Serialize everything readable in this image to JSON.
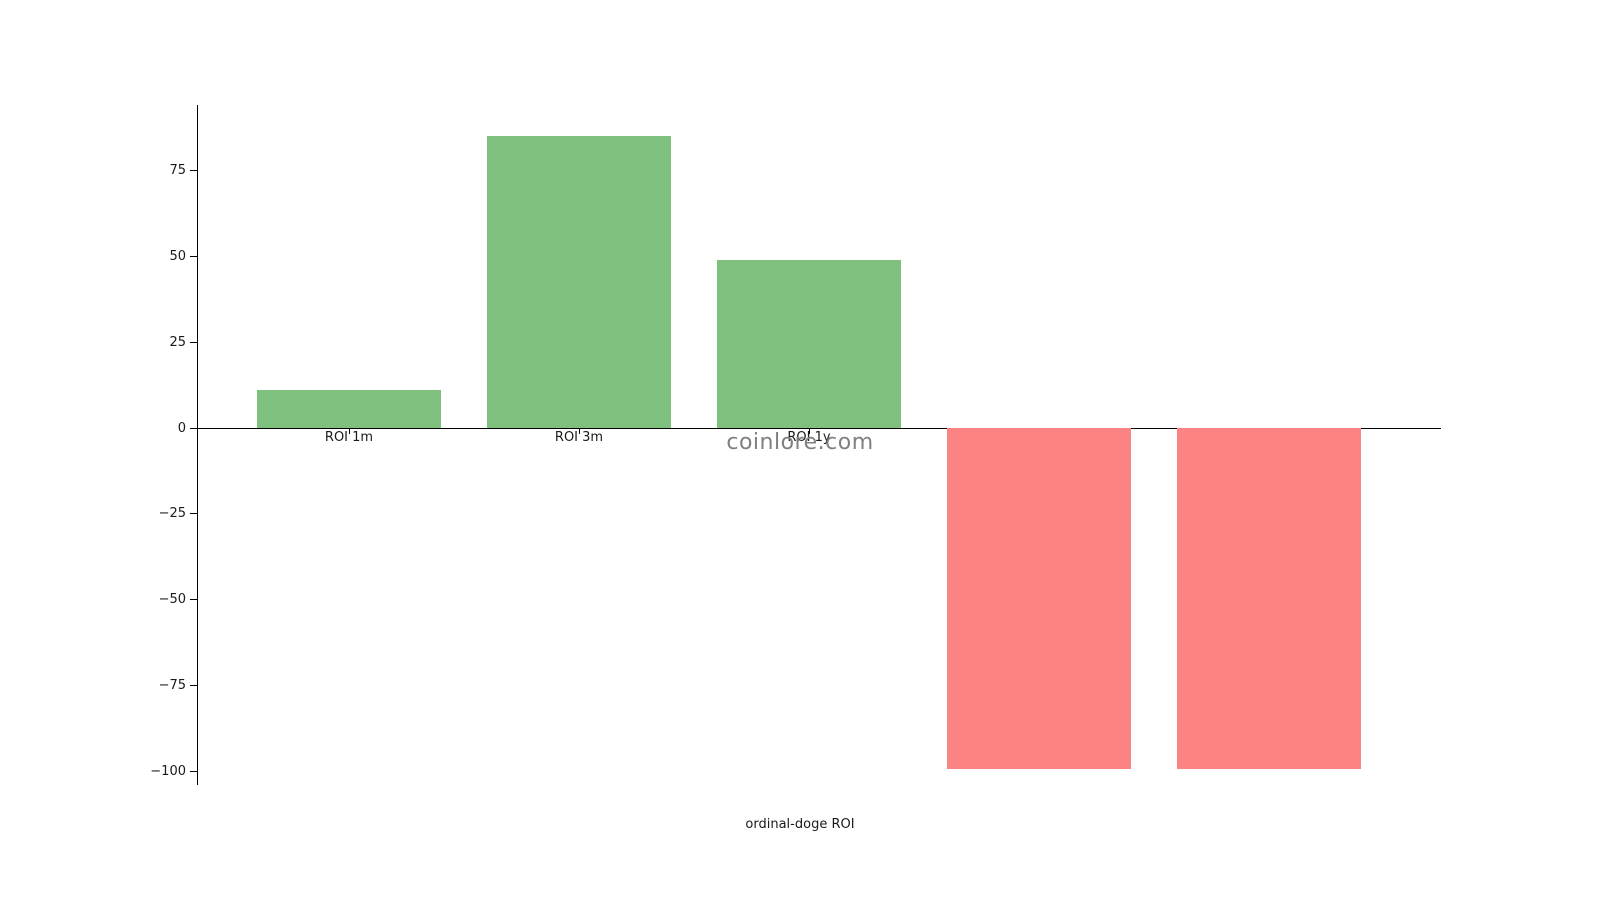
{
  "watermark": "coinlore.com",
  "chart_data": {
    "type": "bar",
    "title": "ordinal-doge ROI",
    "xlabel": "ordinal-doge ROI",
    "categories": [
      "ROI 1m",
      "ROI 3m",
      "ROI 1y",
      "",
      ""
    ],
    "values": [
      11,
      85,
      49,
      -99.5,
      -99.5
    ],
    "y_ticks": [
      75,
      50,
      25,
      0,
      -25,
      -50,
      -75,
      -100
    ],
    "y_tick_labels": [
      "75",
      "50",
      "25",
      "0",
      "−25",
      "−50",
      "−75",
      "−100"
    ],
    "ylim": [
      -104,
      94
    ],
    "grid": false,
    "legend": null,
    "colors": {
      "positive_bar": "#7ec17e",
      "negative_bar": "#fc8383",
      "axis": "#000000",
      "tick_label": "#1a1a1a",
      "watermark": "#808080"
    }
  }
}
